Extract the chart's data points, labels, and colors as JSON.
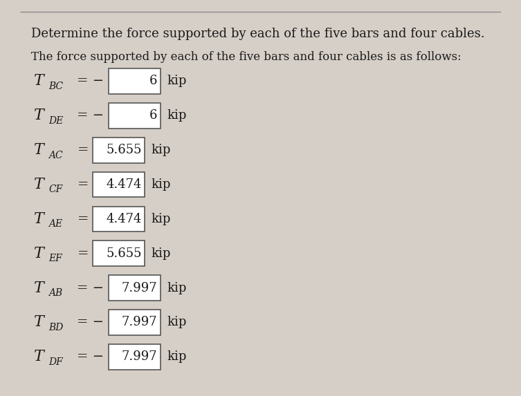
{
  "title": "Determine the force supported by each of the five bars and four cables.",
  "subtitle": "The force supported by each of the five bars and four cables is as follows:",
  "background_color": "#d6cfc7",
  "rows": [
    {
      "label_main": "T",
      "label_sub": "BC",
      "sign": "= −",
      "value": "6",
      "unit": "kip",
      "negative": true
    },
    {
      "label_main": "T",
      "label_sub": "DE",
      "sign": "= −",
      "value": "6",
      "unit": "kip",
      "negative": true
    },
    {
      "label_main": "T",
      "label_sub": "AC",
      "sign": "=",
      "value": "5.655",
      "unit": "kip",
      "negative": false
    },
    {
      "label_main": "T",
      "label_sub": "CF",
      "sign": "=",
      "value": "4.474",
      "unit": "kip",
      "negative": false
    },
    {
      "label_main": "T",
      "label_sub": "AE",
      "sign": "=",
      "value": "4.474",
      "unit": "kip",
      "negative": false
    },
    {
      "label_main": "T",
      "label_sub": "EF",
      "sign": "=",
      "value": "5.655",
      "unit": "kip",
      "negative": false
    },
    {
      "label_main": "T",
      "label_sub": "AB",
      "sign": "= −",
      "value": "7.997",
      "unit": "kip",
      "negative": true
    },
    {
      "label_main": "T",
      "label_sub": "BD",
      "sign": "= −",
      "value": "7.997",
      "unit": "kip",
      "negative": true
    },
    {
      "label_main": "T",
      "label_sub": "DF",
      "sign": "= −",
      "value": "7.997",
      "unit": "kip",
      "negative": true
    }
  ],
  "box_color": "#ffffff",
  "box_edge_color": "#555555",
  "text_color": "#1a1a1a",
  "title_fontsize": 13,
  "subtitle_fontsize": 12,
  "row_fontsize": 14,
  "top_line_color": "#888888"
}
